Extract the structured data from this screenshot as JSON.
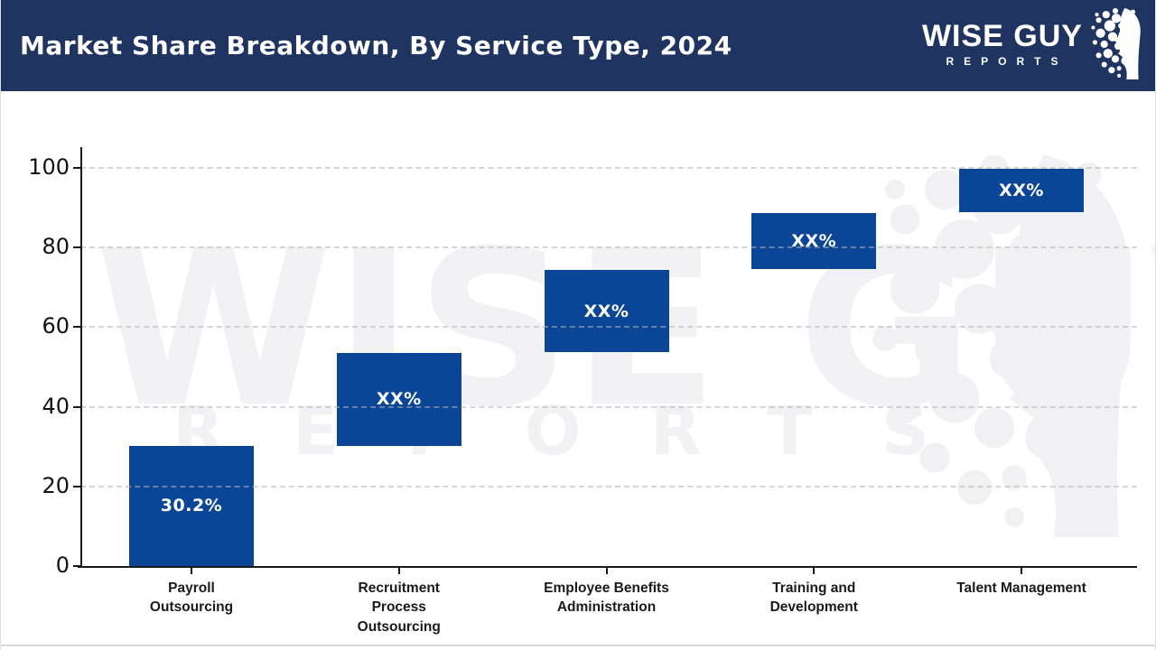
{
  "header": {
    "title": "Market Share Breakdown, By Service Type, 2024",
    "logo": {
      "line1": "WISE GUY",
      "line2": "REPORTS"
    }
  },
  "watermark": {
    "line1": "WISE GUY",
    "line2": "REPORTS"
  },
  "colors": {
    "header_bg": "#203462",
    "bar": "#0b4596",
    "axis": "#1a1a1a",
    "grid": "#bcbcbc",
    "bar_label": "#ffffff",
    "watermark": "#f2f2f5"
  },
  "chart_data": {
    "type": "bar",
    "subtype": "waterfall",
    "title": "Market Share Breakdown, By Service Type, 2024",
    "xlabel": "",
    "ylabel": "",
    "ylim": [
      0,
      100
    ],
    "yticks": [
      0,
      20,
      40,
      60,
      80,
      100
    ],
    "grid": "horizontal-dashed",
    "legend": "none",
    "bar_color": "#0b4596",
    "categories": [
      "Payroll Outsourcing",
      "Recruitment Process Outsourcing",
      "Employee Benefits Administration",
      "Training and Development",
      "Talent Management"
    ],
    "segments": [
      {
        "label": "Payroll Outsourcing",
        "label_lines": "Payroll\nOutsourcing",
        "start": 0,
        "end": 30.2,
        "value_label": "30.2%"
      },
      {
        "label": "Recruitment Process Outsourcing",
        "label_lines": "Recruitment\nProcess\nOutsourcing",
        "start": 30.2,
        "end": 53.5,
        "value_label": "XX%"
      },
      {
        "label": "Employee Benefits Administration",
        "label_lines": "Employee Benefits\nAdministration",
        "start": 53.7,
        "end": 74.4,
        "value_label": "XX%"
      },
      {
        "label": "Training and Development",
        "label_lines": "Training and\nDevelopment",
        "start": 74.6,
        "end": 88.7,
        "value_label": "XX%"
      },
      {
        "label": "Talent Management",
        "label_lines": "Talent Management",
        "start": 89.0,
        "end": 99.8,
        "value_label": "XX%"
      }
    ]
  }
}
